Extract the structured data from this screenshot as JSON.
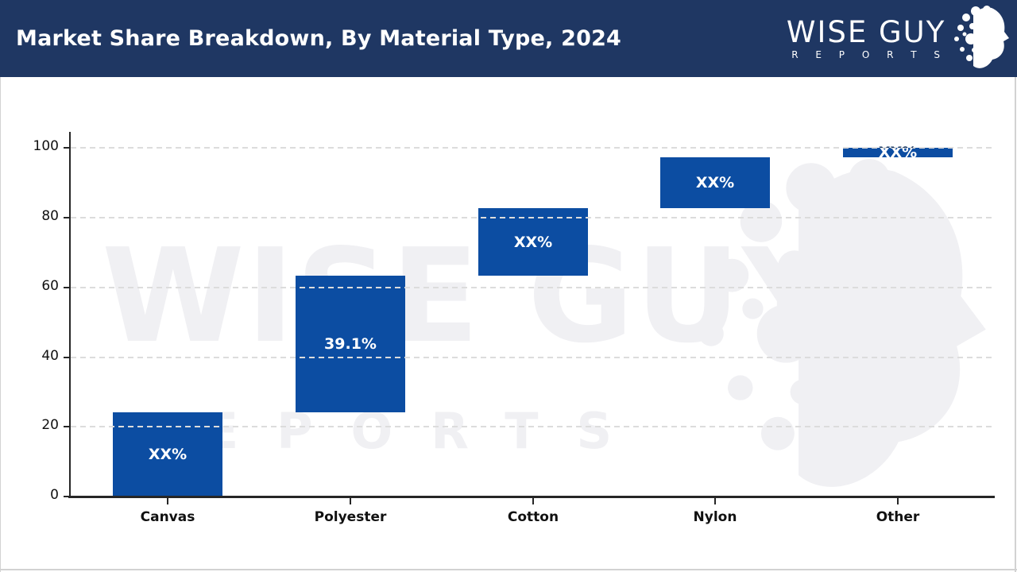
{
  "header": {
    "title": "Market Share Breakdown, By Material Type, 2024",
    "logo": {
      "line1": "WISE GUY",
      "line2": "R E P O R T S"
    }
  },
  "watermark": {
    "line1": "WISE GUY",
    "line2": "REPORTS"
  },
  "colors": {
    "header_bg": "#1F3763",
    "bar": "#0C4DA2",
    "bar_label": "#FFFFFF",
    "overflow_label": "#16345F",
    "axis": "#262626",
    "grid": "#DCDCDC",
    "watermark": "#F0F0F3",
    "border": "#D2D2D2"
  },
  "chart_data": {
    "type": "bar",
    "subtype": "waterfall",
    "title": "Market Share Breakdown, By Material Type, 2024",
    "categories": [
      "Canvas",
      "Polyester",
      "Cotton",
      "Nylon",
      "Other"
    ],
    "segments": [
      {
        "category": "Canvas",
        "start": 0,
        "end": 24.2,
        "label": "XX%"
      },
      {
        "category": "Polyester",
        "start": 24.2,
        "end": 63.3,
        "label": "39.1%"
      },
      {
        "category": "Cotton",
        "start": 63.3,
        "end": 82.8,
        "label": "XX%"
      },
      {
        "category": "Nylon",
        "start": 82.8,
        "end": 97.4,
        "label": "XX%"
      },
      {
        "category": "Other",
        "start": 97.4,
        "end": 100,
        "label": "XX%"
      }
    ],
    "xlabel": "",
    "ylabel": "",
    "ylim": [
      0,
      100
    ],
    "yticks": [
      0,
      20,
      40,
      60,
      80,
      100
    ],
    "grid": "dashed-horizontal",
    "legend": "none",
    "bar_color": "#0C4DA2",
    "label_color_inside": "#FFFFFF"
  }
}
